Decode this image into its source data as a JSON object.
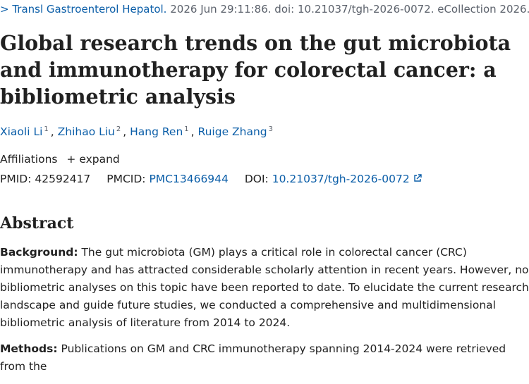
{
  "citation": {
    "journal": "Transl Gastroenterol Hepatol.",
    "details": "2026 Jun 29:11:86. doi: 10.21037/tgh-2026-0072. eCollection 2026."
  },
  "title": "Global research trends on the gut microbiota and immunotherapy for colorectal cancer: a bibliometric analysis",
  "authors": [
    {
      "name": "Xiaoli Li",
      "aff": "1"
    },
    {
      "name": "Zhihao Liu",
      "aff": "2"
    },
    {
      "name": "Hang Ren",
      "aff": "1"
    },
    {
      "name": "Ruige Zhang",
      "aff": "3"
    }
  ],
  "affiliations": {
    "label": "Affiliations",
    "toggle": "expand"
  },
  "ids": {
    "pmid_label": "PMID:",
    "pmid": "42592417",
    "pmcid_label": "PMCID:",
    "pmcid": "PMC13466944",
    "doi_label": "DOI:",
    "doi": "10.21037/tgh-2026-0072"
  },
  "abstract": {
    "heading": "Abstract",
    "sections": [
      {
        "label": "Background:",
        "text": "The gut microbiota (GM) plays a critical role in colorectal cancer (CRC) immunotherapy and has attracted considerable scholarly attention in recent years. However, no bibliometric analyses on this topic have been reported to date. To elucidate the current research landscape and guide future studies, we conducted a comprehensive and multidimensional bibliometric analysis of literature from 2014 to 2024."
      },
      {
        "label": "Methods:",
        "text": "Publications on GM and CRC immunotherapy spanning 2014-2024 were retrieved from the"
      }
    ]
  }
}
